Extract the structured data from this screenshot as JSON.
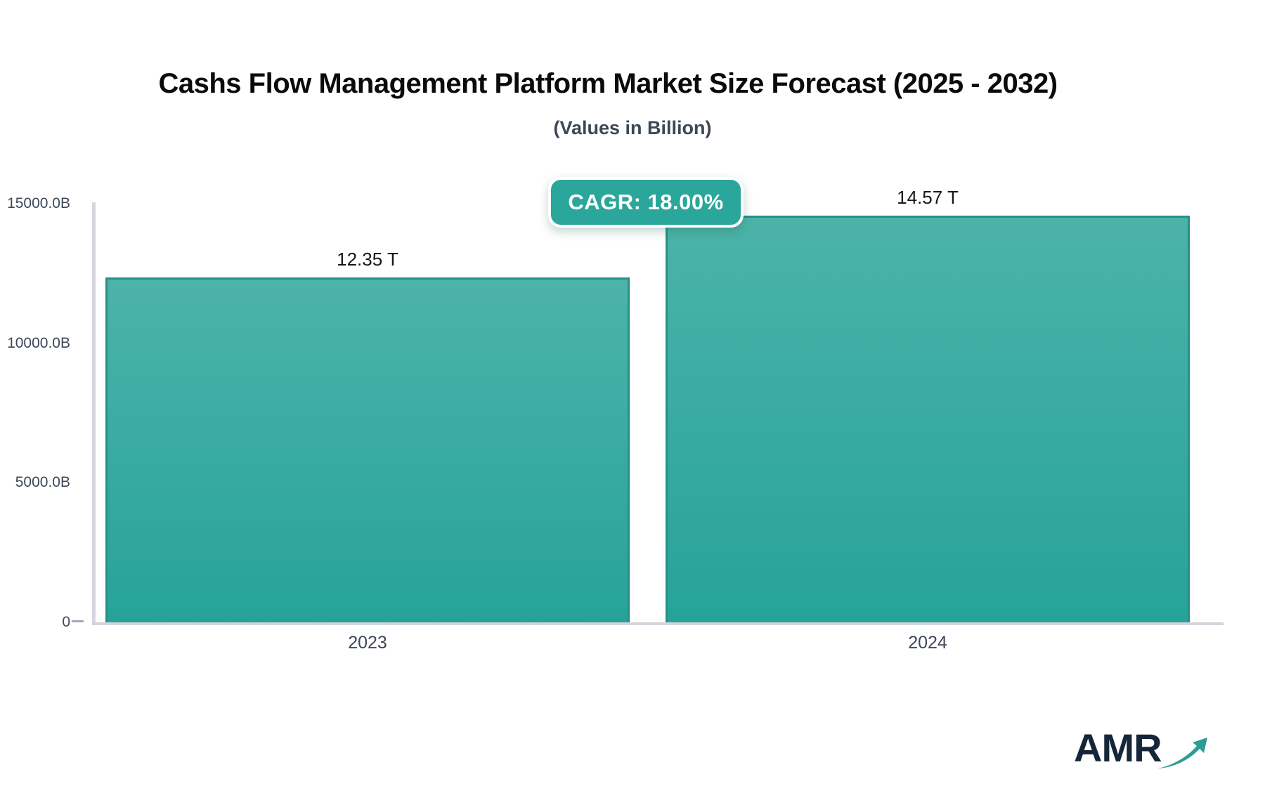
{
  "chart_data": {
    "type": "bar",
    "title": "Cashs Flow Management Platform Market Size Forecast (2025 - 2032)",
    "subtitle": "(Values in Billion)",
    "cagr_label": "CAGR: 18.00%",
    "categories": [
      "2023",
      "2024"
    ],
    "values": [
      12350,
      14570
    ],
    "value_labels": [
      "12.35 T",
      "14.57 T"
    ],
    "unit": "Billion",
    "ylim": [
      0,
      15000
    ],
    "yticks": [
      {
        "value": 15000,
        "label": "15000.0B"
      },
      {
        "value": 10000,
        "label": "10000.0B"
      },
      {
        "value": 5000,
        "label": "5000.0B"
      },
      {
        "value": 0,
        "label": "0"
      }
    ],
    "grid": false,
    "legend": false,
    "colors": {
      "bar_top": "#4cb3a9",
      "bar_bottom": "#26a399",
      "bar_border": "#259189",
      "badge_bg": "#2ba69a",
      "axis_line": "#d4d7de",
      "tick_text": "#3e4859"
    }
  },
  "footer": {
    "logo_text": "AMR",
    "logo_arrow_icon": "growth-arrow-icon",
    "logo_arrow_color": "#2b9d93"
  }
}
